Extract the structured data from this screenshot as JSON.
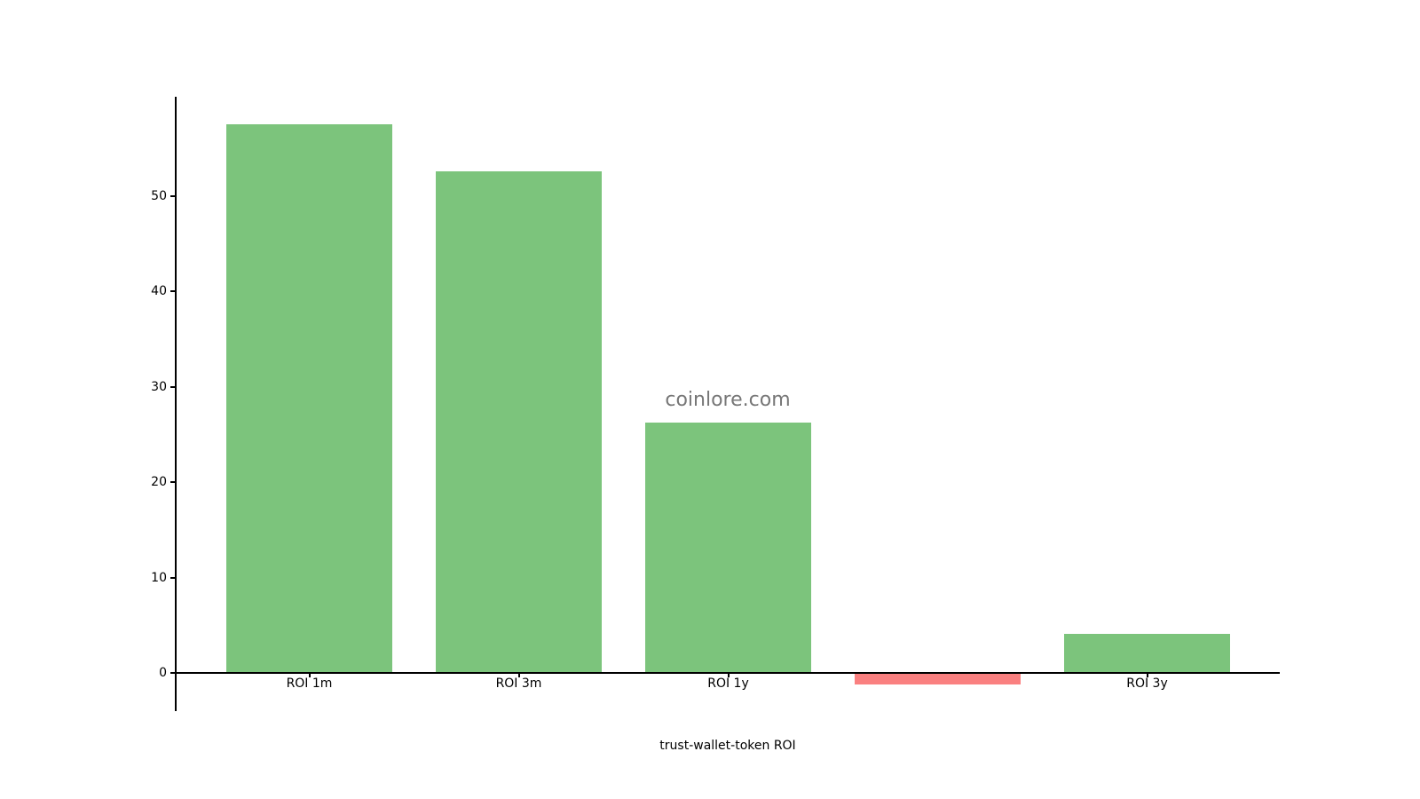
{
  "page": {
    "background": "#ffffff",
    "axis_color": "#000000",
    "text_color": "#000000"
  },
  "watermark": {
    "text": "coinlore.com",
    "color": "#777777"
  },
  "chart_data": {
    "type": "bar",
    "title": "trust-wallet-token ROI",
    "xlabel": "",
    "ylabel": "",
    "categories": [
      "ROI 1m",
      "ROI 3m",
      "ROI 1y",
      "",
      "ROI 3y"
    ],
    "values": [
      57.5,
      52.6,
      26.2,
      -1.2,
      4.1
    ],
    "bar_colors": [
      "#7cc47c",
      "#7cc47c",
      "#7cc47c",
      "#fa8080",
      "#7cc47c"
    ],
    "positive_color": "#7cc47c",
    "negative_color": "#fa8080",
    "yticks": [
      0,
      10,
      20,
      30,
      40,
      50
    ],
    "ylim": [
      -4,
      60.4
    ],
    "grid": false,
    "legend": false,
    "bar_width_ratio": 0.8
  }
}
